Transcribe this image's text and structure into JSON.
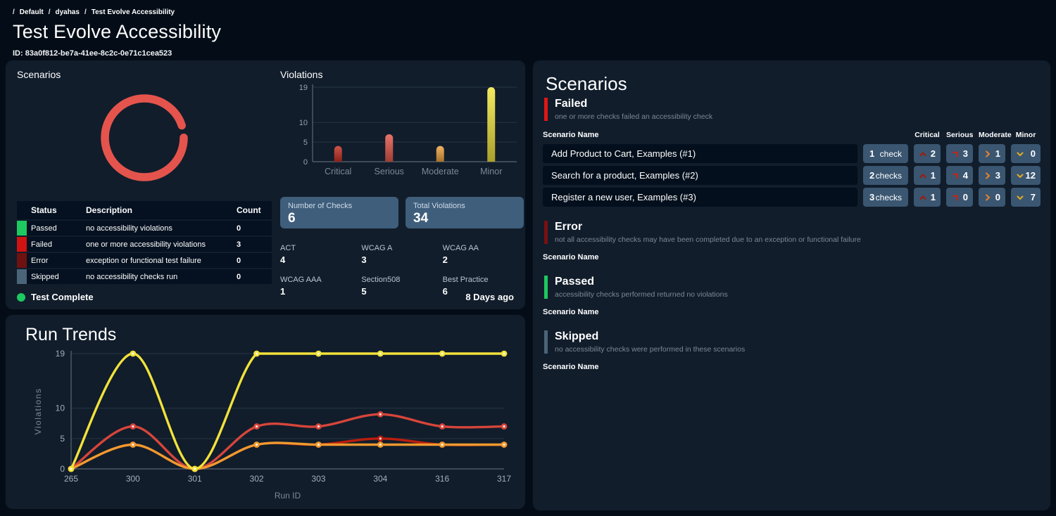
{
  "breadcrumb": {
    "separator": "/",
    "items": [
      "Default",
      "dyahas",
      "Test Evolve Accessibility"
    ]
  },
  "header": {
    "title": "Test Evolve Accessibility",
    "id_label": "ID: 83a0f812-be7a-41ee-8c2c-0e71c1cea523"
  },
  "overview_panel": {
    "scenarios_title": "Scenarios",
    "violations_title": "Violations",
    "donut": {
      "color": "#e4544d",
      "gap_percent": 5
    },
    "status_table": {
      "headers": [
        "Status",
        "Description",
        "Count"
      ],
      "rows": [
        {
          "status": "Passed",
          "description": "no accessibility violations",
          "count": "0",
          "color": "#1dc960"
        },
        {
          "status": "Failed",
          "description": "one or more accessibility violations",
          "count": "3",
          "color": "#cf1212"
        },
        {
          "status": "Error",
          "description": "exception or functional test failure",
          "count": "0",
          "color": "#6e1111"
        },
        {
          "status": "Skipped",
          "description": "no accessibility checks run",
          "count": "0",
          "color": "#4a6478"
        }
      ]
    },
    "stats": [
      {
        "label": "Number of Checks",
        "value": "6"
      },
      {
        "label": "Total Violations",
        "value": "34"
      }
    ],
    "standards": [
      {
        "label": "ACT",
        "value": "4"
      },
      {
        "label": "WCAG A",
        "value": "3"
      },
      {
        "label": "WCAG AA",
        "value": "2"
      },
      {
        "label": "WCAG AAA",
        "value": "1"
      },
      {
        "label": "Section508",
        "value": "5"
      },
      {
        "label": "Best Practice",
        "value": "6"
      }
    ],
    "footer": {
      "status_text": "Test Complete",
      "status_color": "#1dc960",
      "time_ago": "8 Days ago"
    }
  },
  "run_trends_panel": {
    "title": "Run Trends"
  },
  "right_panel": {
    "title": "Scenarios",
    "scenario_name_label": "Scenario Name",
    "severity_columns": [
      "Critical",
      "Serious",
      "Moderate",
      "Minor"
    ],
    "severity_icon_colors": {
      "critical": "#9e1b10",
      "serious": "#c1271a",
      "moderate": "#e2812d",
      "minor": "#d9a827"
    },
    "sections": [
      {
        "key": "failed",
        "title": "Failed",
        "bar_color": "#e01616",
        "subtitle": "one or more checks failed an accessibility check",
        "rows": [
          {
            "name": "Add Product to Cart, Examples (#1)",
            "checks_count": "1",
            "checks_label": "check",
            "critical": "2",
            "serious": "3",
            "moderate": "1",
            "minor": "0"
          },
          {
            "name": "Search for a product, Examples (#2)",
            "checks_count": "2",
            "checks_label": "checks",
            "critical": "1",
            "serious": "4",
            "moderate": "3",
            "minor": "12"
          },
          {
            "name": "Register a new user, Examples (#3)",
            "checks_count": "3",
            "checks_label": "checks",
            "critical": "1",
            "serious": "0",
            "moderate": "0",
            "minor": "7"
          }
        ]
      },
      {
        "key": "error",
        "title": "Error",
        "bar_color": "#7a1010",
        "subtitle": "not all accessibility checks may have been completed due to an exception or functional failure",
        "rows": []
      },
      {
        "key": "passed",
        "title": "Passed",
        "bar_color": "#1dc960",
        "subtitle": "accessibility checks performed returned no violations",
        "rows": []
      },
      {
        "key": "skipped",
        "title": "Skipped",
        "bar_color": "#4a6478",
        "subtitle": "no accessibility checks were performed in these scenarios",
        "rows": []
      }
    ]
  },
  "chart_data": [
    {
      "type": "bar",
      "title": "Violations",
      "categories": [
        "Critical",
        "Serious",
        "Moderate",
        "Minor"
      ],
      "values": [
        4,
        7,
        4,
        19
      ],
      "colors": [
        "#c62f22",
        "#e2574a",
        "#efa23e",
        "#f3e53d"
      ],
      "yticks": [
        0,
        5,
        10,
        19
      ],
      "ylim": [
        0,
        19
      ],
      "xlabel": "",
      "ylabel": "",
      "grid": true,
      "legend": false
    },
    {
      "type": "line",
      "title": "Run Trends",
      "x": [
        "265",
        "300",
        "301",
        "302",
        "303",
        "304",
        "316",
        "317"
      ],
      "series": [
        {
          "name": "Serious",
          "color": "#d7453a",
          "values": [
            0,
            7,
            0,
            7,
            7,
            9,
            7,
            7
          ]
        },
        {
          "name": "Critical",
          "color": "#bb1d0e",
          "values": [
            0,
            4,
            0,
            4,
            4,
            5,
            4,
            4
          ]
        },
        {
          "name": "Moderate",
          "color": "#ef9a2f",
          "values": [
            0,
            4,
            0,
            4,
            4,
            4,
            4,
            4
          ]
        },
        {
          "name": "Minor",
          "color": "#f2e23b",
          "values": [
            0,
            19,
            0,
            19,
            19,
            19,
            19,
            19
          ]
        }
      ],
      "yticks": [
        0,
        5,
        10,
        19
      ],
      "ylim": [
        0,
        19
      ],
      "xlabel": "Run ID",
      "ylabel": "Violations",
      "grid": true,
      "legend": false
    }
  ]
}
